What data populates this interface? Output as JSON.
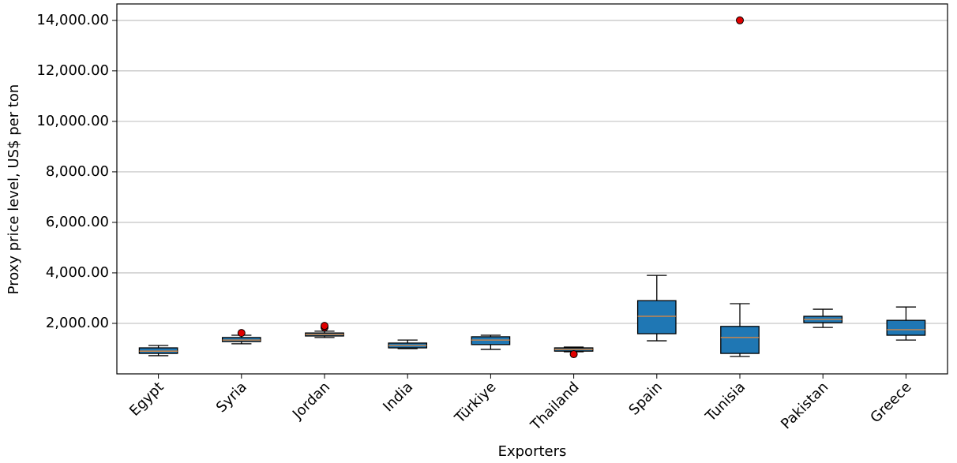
{
  "chart_data": {
    "type": "box",
    "x_label": "Exporters",
    "y_label": "Proxy price level, US$ per ton",
    "categories": [
      "Egypt",
      "Syria",
      "Jordan",
      "India",
      "Türkiye",
      "Thailand",
      "Spain",
      "Tunisia",
      "Pakistan",
      "Greece"
    ],
    "boxes": [
      {
        "whisker_low": 720,
        "q1": 810,
        "median": 900,
        "q3": 1030,
        "whisker_high": 1125,
        "outliers": []
      },
      {
        "whisker_low": 1190,
        "q1": 1280,
        "median": 1340,
        "q3": 1440,
        "whisker_high": 1530,
        "outliers": [
          1620
        ]
      },
      {
        "whisker_low": 1440,
        "q1": 1500,
        "median": 1560,
        "q3": 1620,
        "whisker_high": 1690,
        "outliers": [
          1840,
          1900
        ]
      },
      {
        "whisker_low": 1000,
        "q1": 1030,
        "median": 1125,
        "q3": 1220,
        "whisker_high": 1340,
        "outliers": []
      },
      {
        "whisker_low": 970,
        "q1": 1160,
        "median": 1340,
        "q3": 1470,
        "whisker_high": 1530,
        "outliers": []
      },
      {
        "whisker_low": 875,
        "q1": 900,
        "median": 970,
        "q3": 1030,
        "whisker_high": 1060,
        "outliers": [
          780
        ]
      },
      {
        "whisker_low": 1310,
        "q1": 1590,
        "median": 2280,
        "q3": 2900,
        "whisker_high": 3900,
        "outliers": []
      },
      {
        "whisker_low": 690,
        "q1": 810,
        "median": 1440,
        "q3": 1880,
        "whisker_high": 2780,
        "outliers": [
          14000
        ]
      },
      {
        "whisker_low": 1840,
        "q1": 2030,
        "median": 2160,
        "q3": 2280,
        "whisker_high": 2560,
        "outliers": []
      },
      {
        "whisker_low": 1340,
        "q1": 1530,
        "median": 1750,
        "q3": 2120,
        "whisker_high": 2650,
        "outliers": []
      }
    ],
    "box_color": "#1f77b4",
    "median_color": "#e8883a",
    "outlier_color": "#e00000",
    "ylim": [
      0,
      14650
    ],
    "yticks": [
      {
        "value": 2000,
        "label": "2,000.00"
      },
      {
        "value": 4000,
        "label": "4,000.00"
      },
      {
        "value": 6000,
        "label": "6,000.00"
      },
      {
        "value": 8000,
        "label": "8,000.00"
      },
      {
        "value": 10000,
        "label": "10,000.00"
      },
      {
        "value": 12000,
        "label": "12,000.00"
      },
      {
        "value": 14000,
        "label": "14,000.00"
      }
    ],
    "grid": true
  }
}
